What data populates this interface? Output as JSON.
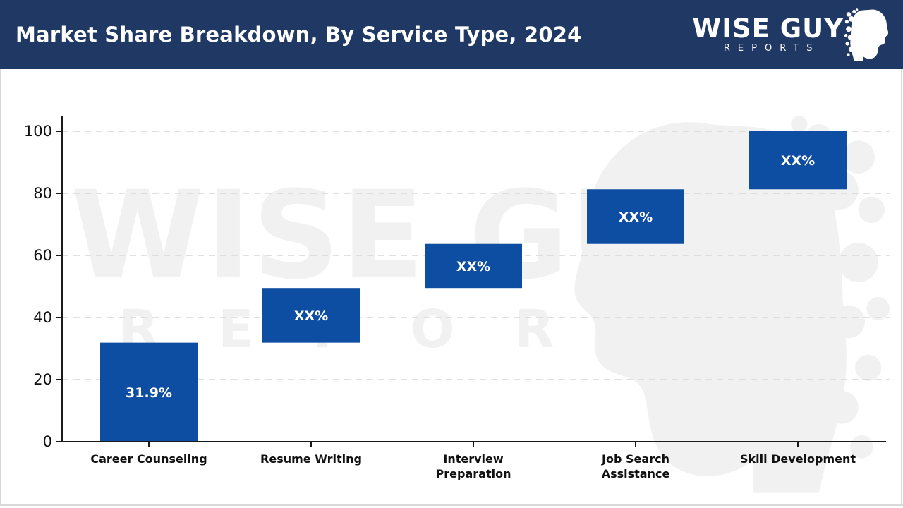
{
  "header": {
    "title": "Market Share Breakdown, By Service Type, 2024",
    "logo": {
      "wordmark": "WISE GUY",
      "subtext": "REPORTS"
    }
  },
  "watermark": {
    "wordmark": "WISE GUY",
    "subtext": "REPORTS"
  },
  "chart_data": {
    "type": "bar",
    "subtype": "waterfall-floating-bars",
    "title": "Market Share Breakdown, By Service Type, 2024",
    "categories": [
      "Career Counseling",
      "Resume Writing",
      "Interview Preparation",
      "Job Search Assistance",
      "Skill Development"
    ],
    "category_lines": [
      [
        "Career Counseling"
      ],
      [
        "Resume Writing"
      ],
      [
        "Interview",
        "Preparation"
      ],
      [
        "Job Search",
        "Assistance"
      ],
      [
        "Skill Development"
      ]
    ],
    "segments": [
      {
        "category": "Career Counseling",
        "start": 0,
        "end": 31.9,
        "label": "31.9%"
      },
      {
        "category": "Resume Writing",
        "start": 31.9,
        "end": 49.5,
        "label": "XX%"
      },
      {
        "category": "Interview Preparation",
        "start": 49.5,
        "end": 63.7,
        "label": "XX%"
      },
      {
        "category": "Job Search Assistance",
        "start": 63.7,
        "end": 81.3,
        "label": "XX%"
      },
      {
        "category": "Skill Development",
        "start": 81.3,
        "end": 100,
        "label": "XX%"
      }
    ],
    "xlabel": "",
    "ylabel": "",
    "ylim": [
      0,
      105
    ],
    "yticks": [
      0,
      20,
      40,
      60,
      80,
      100
    ],
    "grid": "horizontal-dashed",
    "legend": "none",
    "bar_color": "#0d4da2",
    "bar_label_color": "#ffffff",
    "axis_color": "#1a1a1a",
    "grid_color": "#dcdcdc",
    "background": "#ffffff",
    "header_bg": "#1f3864"
  }
}
